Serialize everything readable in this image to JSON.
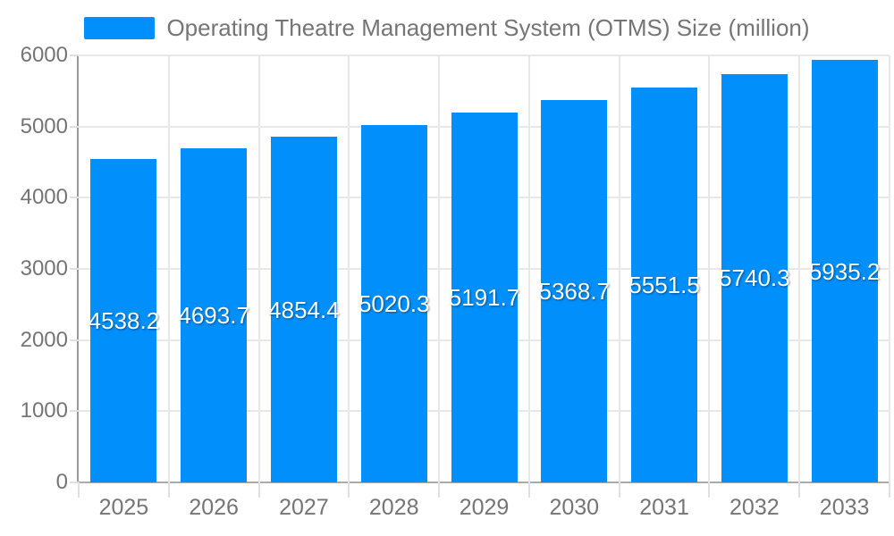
{
  "chart_data": {
    "type": "bar",
    "title": "Operating Theatre Management System (OTMS) Size (million)",
    "categories": [
      "2025",
      "2026",
      "2027",
      "2028",
      "2029",
      "2030",
      "2031",
      "2032",
      "2033"
    ],
    "series": [
      {
        "name": "Operating Theatre Management System (OTMS) Size (million)",
        "values": [
          4538.2,
          4693.7,
          4854.4,
          5020.3,
          5191.7,
          5368.7,
          5551.5,
          5740.3,
          5935.2
        ]
      }
    ],
    "xlabel": "",
    "ylabel": "",
    "ylim": [
      0,
      6000
    ],
    "ytick_step": 1000,
    "ytick_labels": [
      "0",
      "1000",
      "2000",
      "3000",
      "4000",
      "5000",
      "6000"
    ],
    "grid": true,
    "legend_position": "top",
    "data_labels": "inside-center",
    "colors": {
      "bar": "#008FFB",
      "grid": "#e8e8e8",
      "axis_line": "#9a9a9a",
      "tick": "#e0e0e0",
      "label_text": "#757575",
      "data_label_text": "#ffffff",
      "background": "#ffffff"
    }
  }
}
